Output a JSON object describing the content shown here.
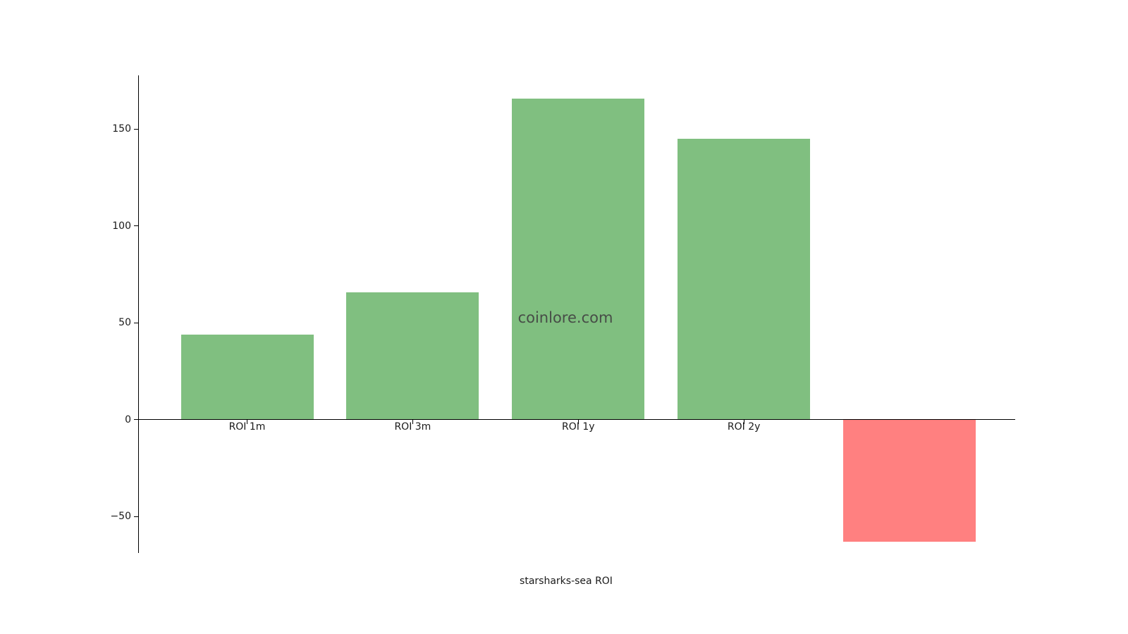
{
  "chart_data": {
    "type": "bar",
    "title": "starsharks-sea ROI",
    "watermark": "coinlore.com",
    "categories": [
      "ROI 1m",
      "ROI 3m",
      "ROI 1y",
      "ROI 2y",
      ""
    ],
    "values": [
      44,
      66,
      166,
      145,
      -63
    ],
    "yticks": [
      -50,
      0,
      50,
      100,
      150
    ],
    "ylim": [
      -69,
      178
    ],
    "xlabel": "",
    "ylabel": "",
    "grid": false,
    "legend_position": "none",
    "colors": {
      "positive_bar": "#80bf80",
      "negative_bar": "#ff8080",
      "axis": "#000000",
      "tick_label": "#1a1a1a",
      "watermark_text": "#404040"
    }
  }
}
